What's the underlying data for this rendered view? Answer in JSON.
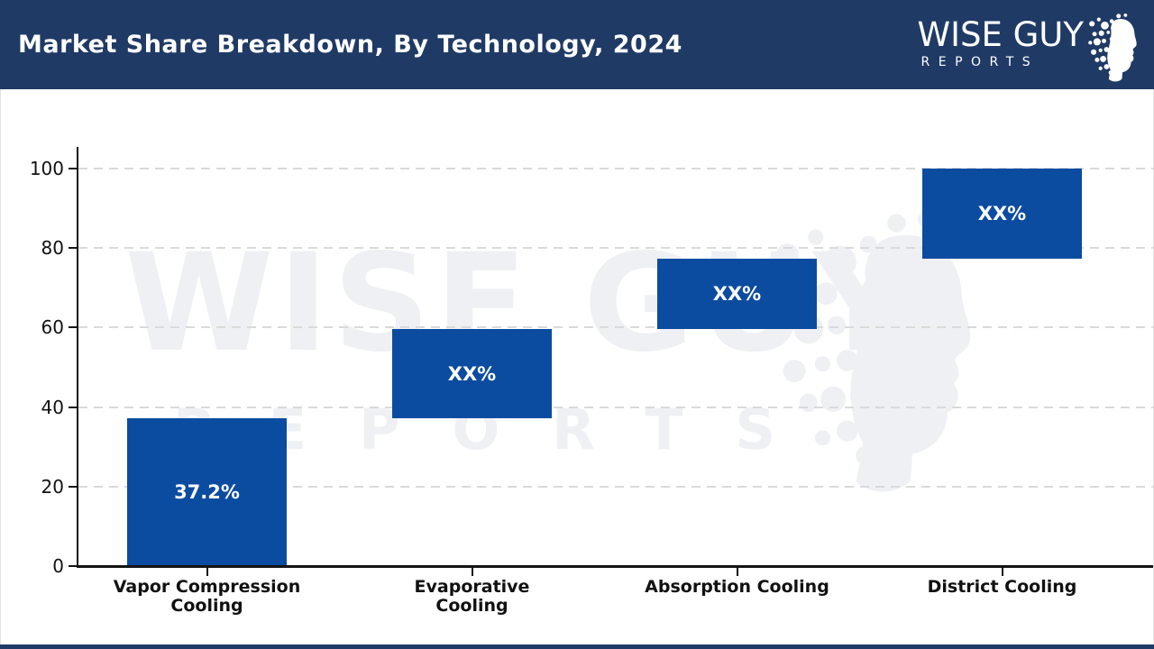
{
  "header": {
    "title": "Market Share Breakdown, By Technology, 2024",
    "logo": {
      "line1": "WISE GUY",
      "line2": "REPORTS"
    }
  },
  "watermark": {
    "line1": "WISE GUY",
    "line2": "REPORTS"
  },
  "colors": {
    "header_bg": "#1f3a64",
    "footer_bg": "#1f3a64",
    "bar": "#0c4ca0",
    "bar_label": "#ffffff",
    "grid": "#dadada",
    "axis": "#141414",
    "tick_label": "#111111",
    "watermark": "#eef0f3"
  },
  "chart_data": {
    "type": "bar",
    "subtype": "waterfall",
    "title": "Market Share Breakdown, By Technology, 2024",
    "categories": [
      "Vapor Compression\nCooling",
      "Evaporative\nCooling",
      "Absorption Cooling",
      "District Cooling"
    ],
    "segments": [
      {
        "category": "Vapor Compression\nCooling",
        "start": 0,
        "end": 37.2,
        "label": "37.2%"
      },
      {
        "category": "Evaporative\nCooling",
        "start": 37.2,
        "end": 59.6,
        "label": "XX%"
      },
      {
        "category": "Absorption Cooling",
        "start": 59.6,
        "end": 77.3,
        "label": "XX%"
      },
      {
        "category": "District Cooling",
        "start": 77.3,
        "end": 100,
        "label": "XX%"
      }
    ],
    "xlabel": "",
    "ylabel": "",
    "ylim": [
      0,
      100
    ],
    "yticks": [
      0,
      20,
      40,
      60,
      80,
      100
    ],
    "grid": "horizontal-dashed",
    "legend": null
  }
}
